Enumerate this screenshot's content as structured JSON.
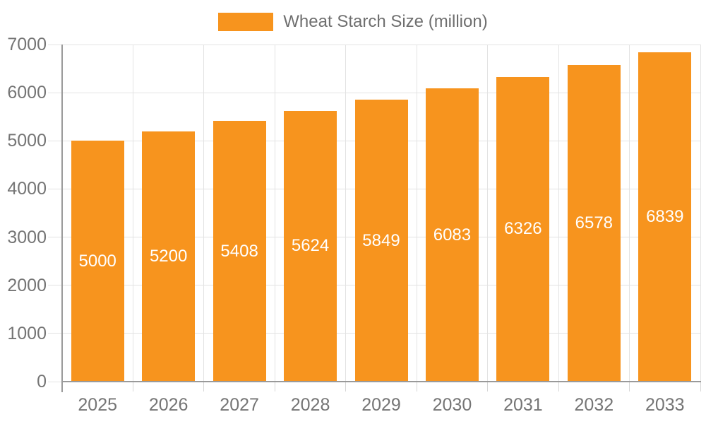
{
  "chart_data": {
    "type": "bar",
    "title": "",
    "legend": "Wheat Starch Size (million)",
    "legend_position": "top",
    "categories": [
      "2025",
      "2026",
      "2027",
      "2028",
      "2029",
      "2030",
      "2031",
      "2032",
      "2033"
    ],
    "series": [
      {
        "name": "Wheat Starch Size (million)",
        "values": [
          5000,
          5200,
          5408,
          5624,
          5849,
          6083,
          6326,
          6578,
          6839
        ]
      }
    ],
    "bar_value_labels": [
      "5000",
      "5200",
      "5408",
      "5624",
      "5849",
      "6083",
      "6326",
      "6578",
      "6839"
    ],
    "xlabel": "",
    "ylabel": "",
    "ylim": [
      0,
      7000
    ],
    "yticks": [
      0,
      1000,
      2000,
      3000,
      4000,
      5000,
      6000,
      7000
    ],
    "ytick_labels": [
      "0",
      "1000",
      "2000",
      "3000",
      "4000",
      "5000",
      "6000",
      "7000"
    ],
    "grid": true,
    "colors": {
      "bar": "#F7941E",
      "bar_label": "#FFFFFF",
      "axis_text": "#757575",
      "legend_text": "#6F6F6F",
      "gridline": "#E3E3E3",
      "axis_line": "#9A9A9A"
    }
  }
}
